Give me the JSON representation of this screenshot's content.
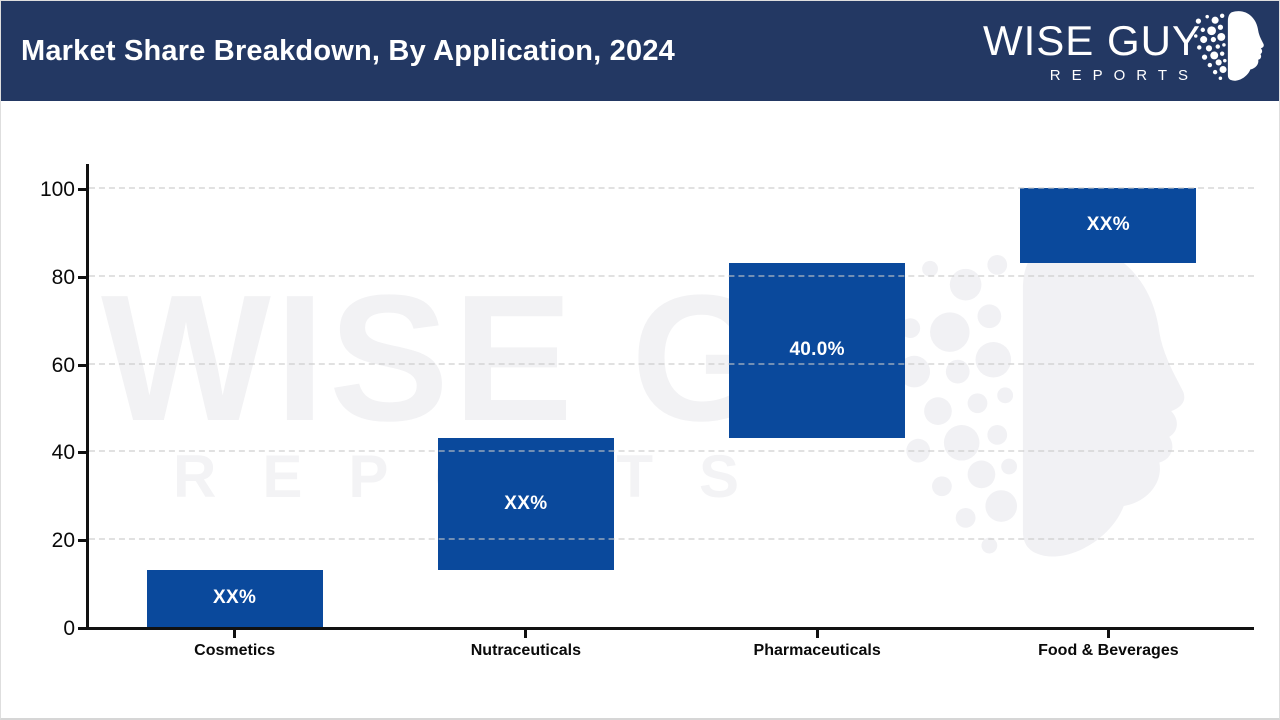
{
  "header": {
    "title": "Market Share Breakdown, By Application, 2024",
    "brand": {
      "name": "WISE GUY",
      "tagline": "REPORTS"
    }
  },
  "watermark": {
    "text": "WISE GU",
    "tagline": "REPORTS"
  },
  "chart_data": {
    "type": "bar",
    "subtype": "waterfall",
    "title": "Market Share Breakdown, By Application, 2024",
    "categories": [
      "Cosmetics",
      "Nutraceuticals",
      "Pharmaceuticals",
      "Food & Beverages"
    ],
    "segments": [
      {
        "category": "Cosmetics",
        "start": 0,
        "end": 13,
        "label": "XX%"
      },
      {
        "category": "Nutraceuticals",
        "start": 13,
        "end": 43,
        "label": "XX%"
      },
      {
        "category": "Pharmaceuticals",
        "start": 43,
        "end": 83,
        "label": "40.0%"
      },
      {
        "category": "Food & Beverages",
        "start": 83,
        "end": 100,
        "label": "XX%"
      }
    ],
    "yticks": [
      0,
      20,
      40,
      60,
      80,
      100
    ],
    "ylim": [
      0,
      100
    ],
    "xlabel": "",
    "ylabel": "",
    "grid": "horizontal-dashed",
    "legend": "none"
  },
  "colors": {
    "header_bg": "#233863",
    "bar": "#0a499c",
    "grid": "rgba(200,200,200,0.55)",
    "axis": "#111111",
    "watermark": "#f2f2f4",
    "bar_label": "#ffffff",
    "title_text": "#ffffff"
  }
}
